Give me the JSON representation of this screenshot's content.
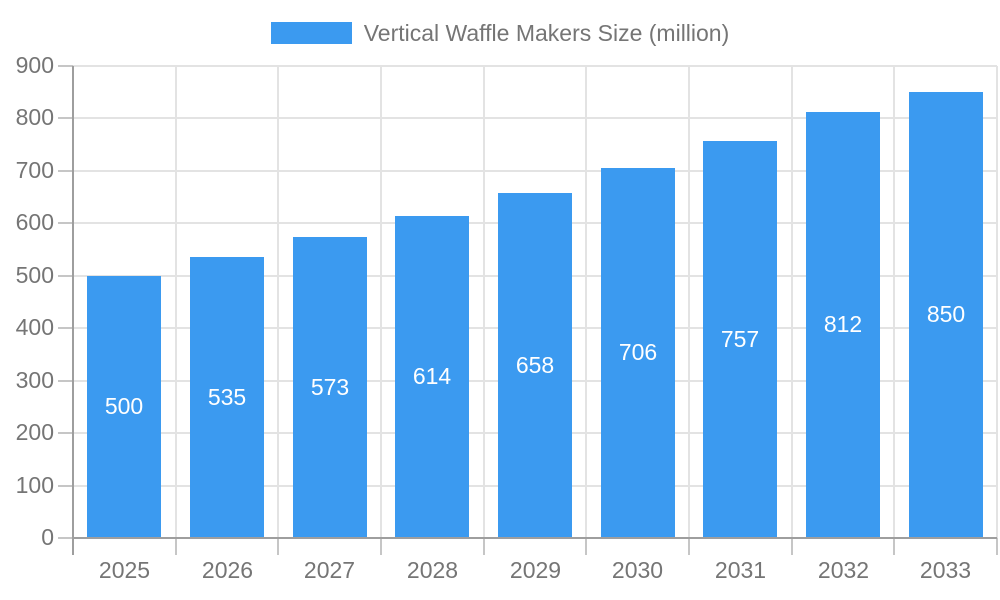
{
  "chart_data": {
    "type": "bar",
    "title": "Vertical Waffle Makers Size (million)",
    "categories": [
      "2025",
      "2026",
      "2027",
      "2028",
      "2029",
      "2030",
      "2031",
      "2032",
      "2033"
    ],
    "values": [
      500,
      535,
      573,
      614,
      658,
      706,
      757,
      812,
      850
    ],
    "xlabel": "",
    "ylabel": "",
    "ylim": [
      0,
      900
    ],
    "ytick_step": 100,
    "yticks": [
      0,
      100,
      200,
      300,
      400,
      500,
      600,
      700,
      800,
      900
    ],
    "grid": true,
    "legend_position": "top-center",
    "bar_label_position": "inside-center",
    "colors": {
      "bar": "#3B9AF0",
      "bar_label": "#FFFFFF",
      "gridline": "#E3E3E3",
      "axis_line": "#9E9E9E",
      "tick_line": "#C6C6C6",
      "axis_label": "#757575",
      "legend_text": "#757575",
      "background": "#FFFFFF"
    }
  }
}
